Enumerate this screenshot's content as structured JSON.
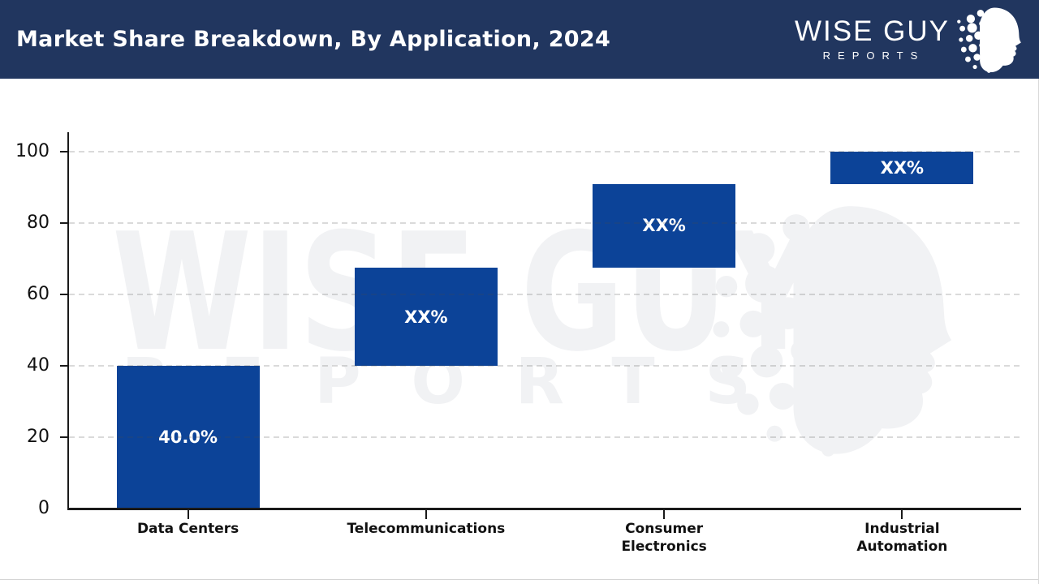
{
  "header": {
    "title": "Market Share Breakdown, By Application, 2024",
    "logo": {
      "wordmark": "WISE GUY",
      "subtext": "REPORTS"
    }
  },
  "watermark": {
    "wordmark": "WISE GUY",
    "subtext": "REPORTS"
  },
  "chart_data": {
    "type": "bar",
    "subtype": "waterfall",
    "title": "Market Share Breakdown, By Application, 2024",
    "categories": [
      "Data Centers",
      "Telecommunications",
      "Consumer Electronics",
      "Industrial Automation"
    ],
    "category_lines": [
      [
        "Data Centers"
      ],
      [
        "Telecommunications"
      ],
      [
        "Consumer",
        "Electronics"
      ],
      [
        "Industrial",
        "Automation"
      ]
    ],
    "values": [
      40.0,
      27.5,
      23.5,
      9.0
    ],
    "segment_starts": [
      0,
      40,
      67.5,
      91
    ],
    "bar_labels": [
      "40.0%",
      "XX%",
      "XX%",
      "XX%"
    ],
    "xlabel": "",
    "ylabel": "",
    "ylim": [
      0,
      100
    ],
    "yticks": [
      0,
      20,
      40,
      60,
      80,
      100
    ],
    "grid": "horizontal-dashed",
    "legend": "none",
    "colors": {
      "bar": "#0c4398",
      "bar_label": "#ffffff",
      "header_bg": "#21365f",
      "grid": "#d9d9d9",
      "axis": "#1a1a1a",
      "watermark": "#f1f2f4"
    }
  }
}
